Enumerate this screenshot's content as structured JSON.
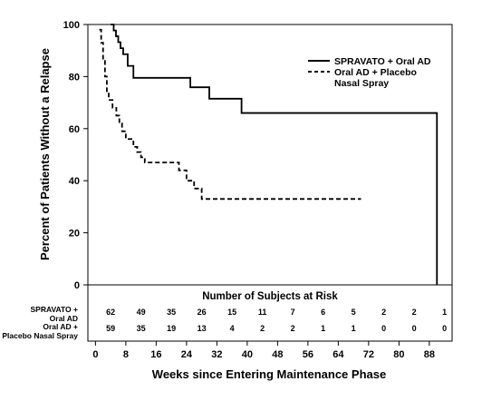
{
  "chart_data": {
    "type": "line",
    "xlabel": "Weeks since Entering Maintenance Phase",
    "ylabel": "Percent of Patients Without a Relapse",
    "xlim": [
      -2,
      94
    ],
    "ylim": [
      0,
      100
    ],
    "x_ticks": [
      0,
      8,
      16,
      24,
      32,
      40,
      48,
      56,
      64,
      72,
      80,
      88
    ],
    "y_ticks": [
      0,
      20,
      40,
      60,
      80,
      100
    ],
    "legend_position": "top-right",
    "series": [
      {
        "name": "SPRAVATO + Oral AD",
        "line_style": "solid",
        "points": [
          [
            4,
            100
          ],
          [
            4.8,
            97.7
          ],
          [
            5.4,
            95.5
          ],
          [
            6,
            93.2
          ],
          [
            6.6,
            90.9
          ],
          [
            7.3,
            88.6
          ],
          [
            8.5,
            84.1
          ],
          [
            10,
            79.5
          ],
          [
            25,
            75.9
          ],
          [
            30,
            71.5
          ],
          [
            38.5,
            66
          ],
          [
            90,
            66
          ],
          [
            90,
            0
          ]
        ]
      },
      {
        "name": "Oral AD + Placebo Nasal Spray",
        "line_style": "dashed",
        "points": [
          [
            1,
            98
          ],
          [
            1.5,
            93
          ],
          [
            2,
            86
          ],
          [
            2.5,
            80
          ],
          [
            3,
            74
          ],
          [
            3.5,
            71
          ],
          [
            4.5,
            68
          ],
          [
            5.5,
            65
          ],
          [
            6.3,
            62
          ],
          [
            7,
            59
          ],
          [
            8,
            56
          ],
          [
            10,
            53
          ],
          [
            11,
            51
          ],
          [
            12,
            49
          ],
          [
            13,
            47
          ],
          [
            22,
            44
          ],
          [
            24,
            40
          ],
          [
            26,
            37
          ],
          [
            28,
            33
          ],
          [
            70,
            33
          ]
        ]
      }
    ]
  },
  "risk_table": {
    "title": "Number of Subjects at Risk",
    "rows": [
      {
        "label_line1": "SPRAVATO +",
        "label_line2": "Oral AD",
        "values": [
          "62",
          "49",
          "35",
          "26",
          "15",
          "11",
          "7",
          "6",
          "5",
          "2",
          "2",
          "1"
        ]
      },
      {
        "label_line1": "Oral AD +",
        "label_line2": "Placebo Nasal Spray",
        "values": [
          "59",
          "35",
          "19",
          "13",
          "4",
          "2",
          "2",
          "1",
          "1",
          "0",
          "0",
          "0"
        ]
      }
    ]
  },
  "colors": {
    "line": "#000000",
    "background": "#ffffff"
  }
}
